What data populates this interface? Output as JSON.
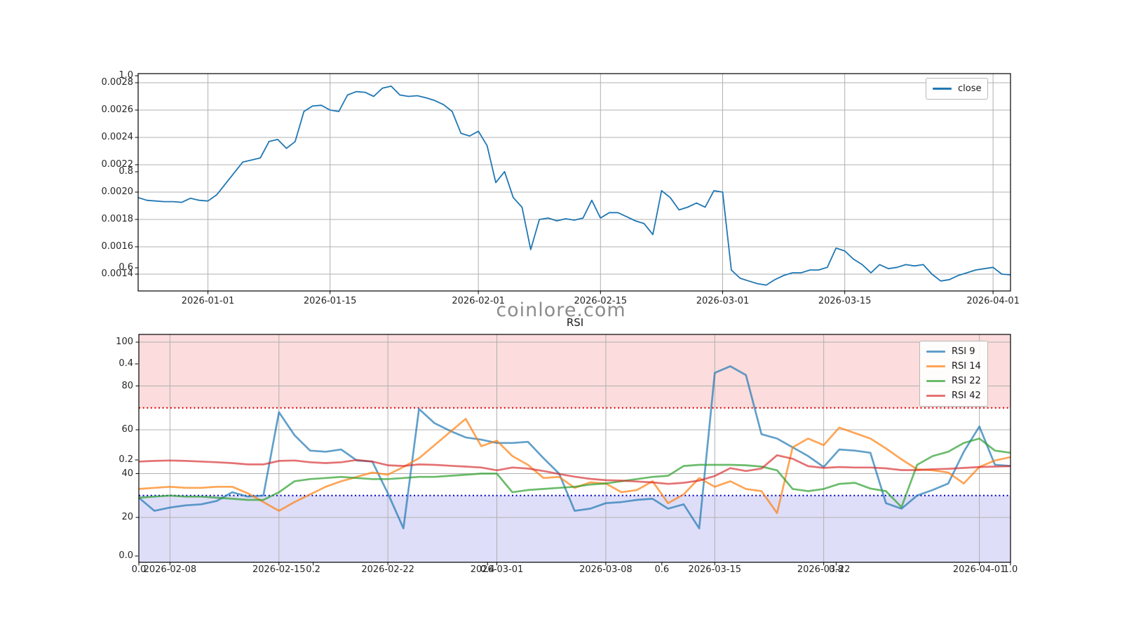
{
  "watermark": "coinlore.com",
  "colors": {
    "close": "#1f77b4",
    "rsi9": "#1f77b4",
    "rsi14": "#ff7f0e",
    "rsi22": "#2ca02c",
    "rsi42": "#d62728",
    "overbought_line": "#d60000",
    "oversold_line": "#0000c8",
    "overbought_band": "rgba(240,80,80,0.2)",
    "oversold_band": "rgba(90,90,220,0.2)",
    "grid": "#b0b0b0",
    "spine": "#000000",
    "text": "#262626",
    "watermark_color": "#8c8c8c"
  },
  "chart_data": [
    {
      "id": "price",
      "type": "line",
      "title": "",
      "legend_position": "upper right",
      "grid": true,
      "x_start": "2025-12-24",
      "x_end": "2026-04-03",
      "x_days": 100,
      "xticks": [
        {
          "label": "2026-01-01",
          "day": 8
        },
        {
          "label": "2026-01-15",
          "day": 22
        },
        {
          "label": "2026-02-01",
          "day": 39
        },
        {
          "label": "2026-02-15",
          "day": 53
        },
        {
          "label": "2026-03-01",
          "day": 67
        },
        {
          "label": "2026-03-15",
          "day": 81
        },
        {
          "label": "2026-04-01",
          "day": 98
        }
      ],
      "yticks": [
        {
          "label": "0.0028",
          "value": 28
        },
        {
          "label": "0.0026",
          "value": 26
        },
        {
          "label": "0.0024",
          "value": 24
        },
        {
          "label": "0.0022",
          "value": 22
        },
        {
          "label": "0.0020",
          "value": 20
        },
        {
          "label": "0.0018",
          "value": 18
        },
        {
          "label": "0.0016",
          "value": 16
        },
        {
          "label": "0.0014",
          "value": 14
        }
      ],
      "ylim": [
        12.77,
        28.67
      ],
      "values_scale": 0.0001,
      "series": [
        {
          "name": "close",
          "color_key": "close",
          "alpha": 1.0,
          "values": [
            19.6,
            19.4,
            19.35,
            19.3,
            19.3,
            19.25,
            19.55,
            19.4,
            19.35,
            19.8,
            20.6,
            21.4,
            22.2,
            22.35,
            22.5,
            23.7,
            23.85,
            23.2,
            23.7,
            25.9,
            26.3,
            26.35,
            26.0,
            25.9,
            27.1,
            27.35,
            27.3,
            27.0,
            27.6,
            27.75,
            27.1,
            27.0,
            27.05,
            26.9,
            26.7,
            26.4,
            25.9,
            24.3,
            24.1,
            24.45,
            23.4,
            20.7,
            21.5,
            19.6,
            18.9,
            15.8,
            18.0,
            18.1,
            17.9,
            18.05,
            17.95,
            18.1,
            19.4,
            18.1,
            18.5,
            18.5,
            18.2,
            17.9,
            17.7,
            16.9,
            20.1,
            19.6,
            18.7,
            18.9,
            19.2,
            18.9,
            20.1,
            20.0,
            14.3,
            13.7,
            13.5,
            13.3,
            13.2,
            13.6,
            13.9,
            14.1,
            14.1,
            14.3,
            14.3,
            14.5,
            15.9,
            15.7,
            15.1,
            14.7,
            14.1,
            14.7,
            14.4,
            14.5,
            14.7,
            14.6,
            14.7,
            14.0,
            13.5,
            13.6,
            13.9,
            14.1,
            14.3,
            14.4,
            14.5,
            14.0,
            13.95
          ]
        }
      ]
    },
    {
      "id": "rsi",
      "type": "line",
      "title": "RSI",
      "legend_position": "upper right",
      "grid": true,
      "overbought": 70,
      "oversold": 30,
      "x_start": "2026-02-06",
      "x_end": "2026-04-03",
      "x_days": 56,
      "xticks": [
        {
          "label": "2026-02-08",
          "day": 2
        },
        {
          "label": "2026-02-15",
          "day": 9
        },
        {
          "label": "2026-02-22",
          "day": 16
        },
        {
          "label": "2026-03-01",
          "day": 23
        },
        {
          "label": "2026-03-08",
          "day": 30
        },
        {
          "label": "2026-03-15",
          "day": 37
        },
        {
          "label": "2026-03-22",
          "day": 44
        },
        {
          "label": "2026-04-01",
          "day": 54
        }
      ],
      "yticks": [
        {
          "label": "100",
          "value": 100
        },
        {
          "label": "80",
          "value": 80
        },
        {
          "label": "60",
          "value": 60
        },
        {
          "label": "40",
          "value": 40
        },
        {
          "label": "20",
          "value": 20
        }
      ],
      "ylim": [
        -0.5,
        103.5
      ],
      "values_scale": 1,
      "series": [
        {
          "name": "RSI 9",
          "color_key": "rsi9",
          "alpha": 0.7,
          "values": [
            29,
            23,
            24.5,
            25.5,
            26,
            27.5,
            31.5,
            29.5,
            30,
            68,
            57.5,
            50.5,
            50,
            51,
            46,
            45.5,
            31,
            15,
            69.5,
            63,
            59.5,
            56.5,
            55.5,
            54,
            54,
            54.5,
            47,
            40,
            23,
            24,
            26.5,
            27,
            28,
            28.5,
            24,
            26,
            15,
            86,
            89,
            85,
            58,
            56,
            52,
            48,
            43,
            51,
            50.5,
            49.5,
            26.5,
            24,
            30,
            32.5,
            35.5,
            50,
            61.5,
            44,
            43.5
          ]
        },
        {
          "name": "RSI 14",
          "color_key": "rsi14",
          "alpha": 0.7,
          "values": [
            33,
            33.5,
            34,
            33.5,
            33.5,
            34,
            34,
            31,
            27,
            23,
            27,
            30.5,
            34,
            36.5,
            38.5,
            40.5,
            39.5,
            43,
            47,
            53,
            59,
            65,
            52.5,
            55,
            48,
            44,
            38,
            38.5,
            33.5,
            36,
            35.5,
            31.5,
            32.5,
            36.5,
            26.5,
            30.5,
            38,
            34,
            36.5,
            33,
            32,
            22,
            52,
            56,
            53,
            61,
            58.5,
            56,
            51.5,
            46.5,
            42,
            41.5,
            40.5,
            35.5,
            43,
            46,
            47.5
          ]
        },
        {
          "name": "RSI 22",
          "color_key": "rsi22",
          "alpha": 0.7,
          "values": [
            29,
            29.5,
            30,
            29.5,
            29.5,
            29,
            28.5,
            28,
            28,
            31.5,
            36.5,
            37.5,
            38,
            38.5,
            38,
            37.5,
            37.5,
            38,
            38.5,
            38.5,
            39,
            39.5,
            40,
            40,
            31.5,
            32.5,
            33,
            33.5,
            34,
            35,
            35.5,
            36.5,
            37.5,
            38.5,
            39,
            43.5,
            44,
            44,
            44,
            43.8,
            43.2,
            41.5,
            33,
            32,
            33,
            35.3,
            35.8,
            33.2,
            32,
            24.7,
            44,
            48,
            50,
            54,
            56,
            50.5,
            49.5
          ]
        },
        {
          "name": "RSI 42",
          "color_key": "rsi42",
          "alpha": 0.65,
          "values": [
            45.5,
            45.8,
            46,
            45.8,
            45.5,
            45.2,
            44.8,
            44.2,
            44.2,
            45.8,
            46,
            45.2,
            44.8,
            45.2,
            46.2,
            45.5,
            43.8,
            43.5,
            44.2,
            44,
            43.6,
            43.2,
            42.8,
            41.5,
            42.8,
            42.3,
            41.2,
            39.8,
            38.6,
            37.6,
            37,
            36.8,
            36.4,
            36,
            35.3,
            35.8,
            36.8,
            38.9,
            42.5,
            41.2,
            42.3,
            48.4,
            46.8,
            43.4,
            42.6,
            43,
            42.8,
            42.8,
            42.4,
            41.6,
            41.6,
            42,
            42.2,
            42.6,
            43,
            43.2,
            43.4
          ]
        }
      ]
    },
    {
      "id": "overlay-axis",
      "type": "axis_overlay",
      "xticks": [
        "0.0",
        "0.2",
        "0.4",
        "0.6",
        "0.8",
        "1.0"
      ],
      "yticks": [
        "1.0",
        "0.8",
        "0.6",
        "0.4",
        "0.2",
        "0.0"
      ]
    }
  ]
}
